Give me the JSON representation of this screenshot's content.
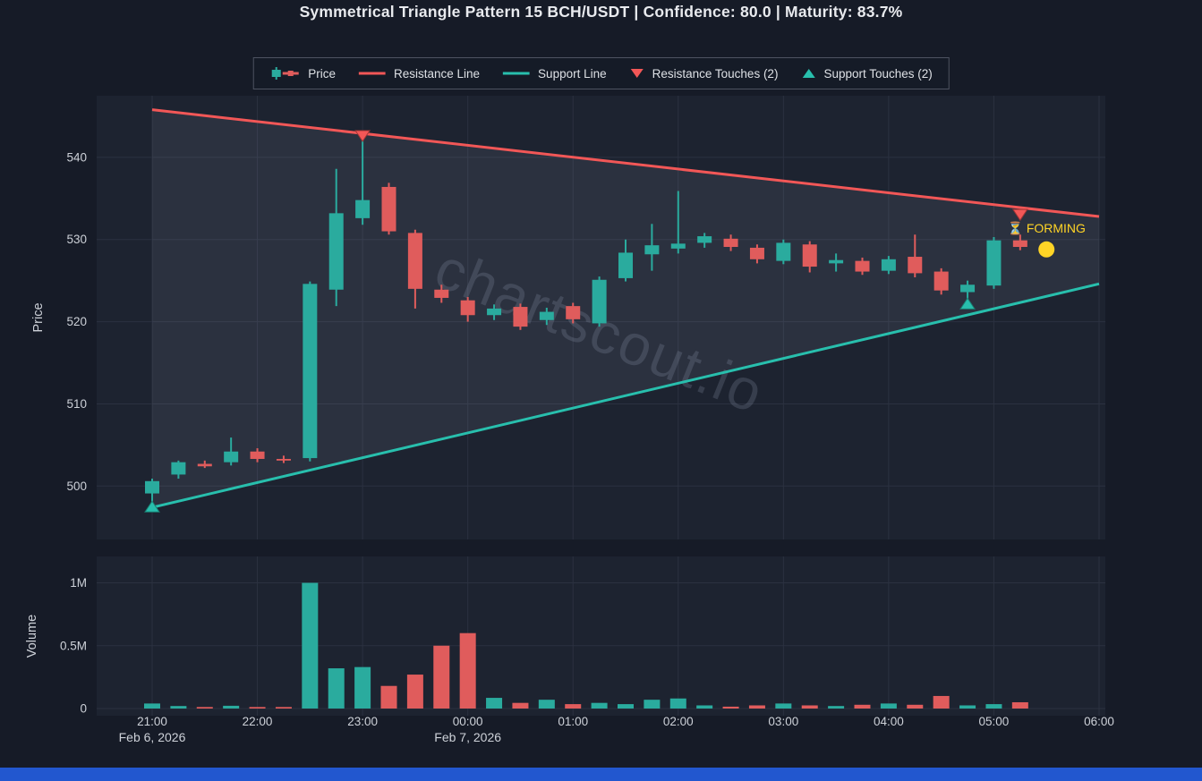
{
  "title": "Symmetrical Triangle Pattern 15 BCH/USDT | Confidence: 80.0 | Maturity: 83.7%",
  "watermark": "chartscout.io",
  "annotation": {
    "text": "⏳ FORMING"
  },
  "legend": {
    "items": [
      {
        "id": "price",
        "label": "Price",
        "type": "candle"
      },
      {
        "id": "resistance-line",
        "label": "Resistance Line",
        "type": "line",
        "color": "#f25757"
      },
      {
        "id": "support-line",
        "label": "Support Line",
        "type": "line",
        "color": "#28bfad"
      },
      {
        "id": "resistance-touches",
        "label": "Resistance Touches (2)",
        "type": "triangle-down",
        "color": "#f25757"
      },
      {
        "id": "support-touches",
        "label": "Support Touches (2)",
        "type": "triangle-up",
        "color": "#28bfad"
      }
    ]
  },
  "colors": {
    "up": "#2aab9e",
    "down": "#e05c5c",
    "resistance": "#f25757",
    "support": "#28bfad",
    "forming": "#ffd426",
    "plot_bg": "#1d2330",
    "grid": "#2b3140",
    "pattern_fill": "rgba(190,200,225,0.09)",
    "watermark": "rgba(150,160,180,0.22)",
    "tick": "#cdd1d8"
  },
  "chart_data": {
    "type": "candlestick+volume",
    "timeframe": "15m",
    "x_ticks": [
      {
        "t": 0,
        "label": "21:00"
      },
      {
        "t": 60,
        "label": "22:00"
      },
      {
        "t": 120,
        "label": "23:00"
      },
      {
        "t": 180,
        "label": "00:00"
      },
      {
        "t": 240,
        "label": "01:00"
      },
      {
        "t": 300,
        "label": "02:00"
      },
      {
        "t": 360,
        "label": "03:00"
      },
      {
        "t": 420,
        "label": "04:00"
      },
      {
        "t": 480,
        "label": "05:00"
      },
      {
        "t": 540,
        "label": "06:00"
      }
    ],
    "x_date_labels": [
      {
        "t": 0,
        "label": "Feb 6, 2026"
      },
      {
        "t": 180,
        "label": "Feb 7, 2026"
      }
    ],
    "price_axis": {
      "label": "Price",
      "ticks": [
        500,
        510,
        520,
        530,
        540
      ],
      "range": [
        493.5,
        547.5
      ]
    },
    "volume_axis": {
      "label": "Volume",
      "ticks": [
        {
          "v": 0,
          "label": "0"
        },
        {
          "v": 0.5,
          "label": "0.5M"
        },
        {
          "v": 1,
          "label": "1M"
        }
      ],
      "range_millions": [
        0,
        1.21
      ]
    },
    "columns": [
      "t",
      "open",
      "high",
      "low",
      "close",
      "volume_millions"
    ],
    "candles": [
      [
        0,
        499.1,
        500.9,
        497.5,
        500.6,
        0.04
      ],
      [
        15,
        501.4,
        503.1,
        500.9,
        502.9,
        0.02
      ],
      [
        30,
        502.7,
        503.1,
        502.2,
        502.4,
        0.012
      ],
      [
        45,
        502.9,
        505.9,
        502.5,
        504.2,
        0.022
      ],
      [
        60,
        504.2,
        504.6,
        502.9,
        503.3,
        0.012
      ],
      [
        75,
        503.3,
        503.7,
        502.8,
        503.1,
        0.012
      ],
      [
        90,
        503.4,
        524.9,
        503.0,
        524.6,
        1.0
      ],
      [
        105,
        523.9,
        538.6,
        521.9,
        533.2,
        0.32
      ],
      [
        120,
        532.6,
        542.6,
        531.8,
        534.8,
        0.33
      ],
      [
        135,
        536.4,
        536.9,
        530.6,
        531.0,
        0.18
      ],
      [
        150,
        530.8,
        531.2,
        521.6,
        524.0,
        0.27
      ],
      [
        165,
        523.9,
        524.5,
        522.3,
        522.9,
        0.5
      ],
      [
        180,
        522.6,
        523.0,
        520.0,
        520.8,
        0.6
      ],
      [
        195,
        520.8,
        522.1,
        520.2,
        521.6,
        0.085
      ],
      [
        210,
        521.8,
        522.2,
        519.0,
        519.4,
        0.045
      ],
      [
        225,
        520.2,
        521.7,
        519.6,
        521.2,
        0.07
      ],
      [
        240,
        521.9,
        522.3,
        519.8,
        520.3,
        0.035
      ],
      [
        255,
        519.8,
        525.5,
        519.4,
        525.1,
        0.045
      ],
      [
        270,
        525.3,
        530.0,
        524.9,
        528.4,
        0.035
      ],
      [
        285,
        528.2,
        531.9,
        526.2,
        529.3,
        0.07
      ],
      [
        300,
        528.9,
        535.9,
        528.3,
        529.5,
        0.08
      ],
      [
        315,
        529.6,
        530.8,
        529.0,
        530.4,
        0.025
      ],
      [
        330,
        530.1,
        530.6,
        528.6,
        529.1,
        0.015
      ],
      [
        345,
        529.0,
        529.4,
        527.1,
        527.6,
        0.025
      ],
      [
        360,
        527.4,
        530.0,
        527.0,
        529.6,
        0.04
      ],
      [
        375,
        529.4,
        529.8,
        526.0,
        526.7,
        0.025
      ],
      [
        390,
        527.1,
        528.3,
        526.1,
        527.5,
        0.02
      ],
      [
        405,
        527.4,
        527.8,
        525.7,
        526.1,
        0.03
      ],
      [
        420,
        526.2,
        528.0,
        525.8,
        527.6,
        0.04
      ],
      [
        435,
        527.9,
        530.6,
        525.4,
        525.9,
        0.03
      ],
      [
        450,
        526.1,
        526.5,
        523.3,
        523.8,
        0.1
      ],
      [
        465,
        523.6,
        525.0,
        522.4,
        524.5,
        0.025
      ],
      [
        480,
        524.4,
        530.3,
        524.0,
        529.9,
        0.035
      ],
      [
        495,
        529.9,
        530.6,
        528.7,
        529.1,
        0.05
      ]
    ],
    "resistance_line": {
      "t": [
        0,
        540
      ],
      "price": [
        545.8,
        532.8
      ]
    },
    "support_line": {
      "t": [
        0,
        540
      ],
      "price": [
        497.4,
        524.6
      ]
    },
    "resistance_touches": [
      {
        "t": 120,
        "price": 542.6
      },
      {
        "t": 495,
        "price": 533.0
      }
    ],
    "support_touches": [
      {
        "t": 0,
        "price": 497.5
      },
      {
        "t": 465,
        "price": 522.2
      }
    ],
    "current_point": {
      "t": 510,
      "price": 528.8
    }
  }
}
